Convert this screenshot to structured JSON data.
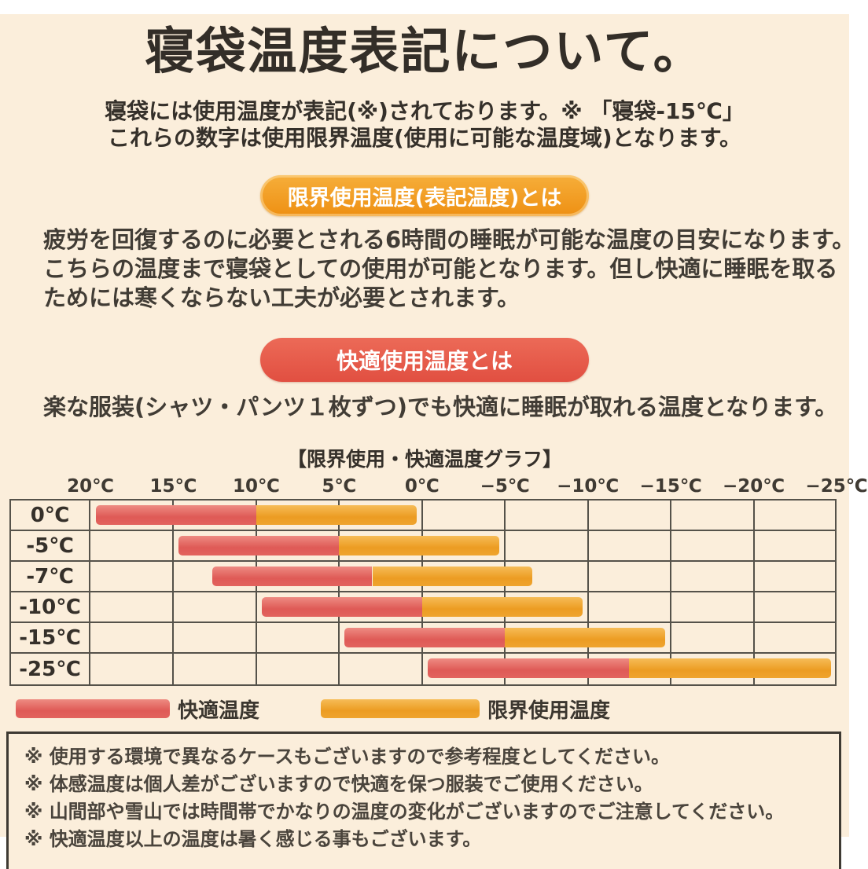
{
  "header": {
    "title": "寝袋温度表記について。",
    "subtitle_line1": "寝袋には使用温度が表記(※)されております。※ 「寝袋-15℃」",
    "subtitle_line2": "これらの数字は使用限界温度(使用に可能な温度域)となります。"
  },
  "sections": {
    "limit": {
      "badge": "限界使用温度(表記温度)とは",
      "lines": [
        "疲労を回復するのに必要とされる6時間の睡眠が可能な温度の目安になります。",
        "こちらの温度まで寝袋としての使用が可能となります。但し快適に睡眠を取る",
        "ためには寒くならない工夫が必要とされます。"
      ]
    },
    "comfort": {
      "badge": "快適使用温度とは",
      "line": "楽な服装(シャツ・パンツ１枚ずつ)でも快適に睡眠が取れる温度となります。"
    }
  },
  "chart_data": {
    "type": "bar",
    "title": "【限界使用・快適温度グラフ】",
    "x_unit": "℃",
    "x_range": [
      20,
      -25
    ],
    "x_ticks": [
      20,
      15,
      10,
      5,
      0,
      -5,
      -10,
      -15,
      -20,
      -25
    ],
    "tick_labels": [
      "20℃",
      "15℃",
      "10℃",
      "5℃",
      "0℃",
      "−5℃",
      "−10℃",
      "−15℃",
      "−20℃",
      "−25℃"
    ],
    "grid": true,
    "rows": [
      {
        "label": "0℃",
        "comfort_from": 20,
        "comfort_to": 10,
        "limit_to": 0
      },
      {
        "label": "-5℃",
        "comfort_from": 15,
        "comfort_to": 5,
        "limit_to": -5
      },
      {
        "label": "-7℃",
        "comfort_from": 13,
        "comfort_to": 3,
        "limit_to": -7
      },
      {
        "label": "-10℃",
        "comfort_from": 10,
        "comfort_to": 0,
        "limit_to": -10
      },
      {
        "label": "-15℃",
        "comfort_from": 5,
        "comfort_to": -5,
        "limit_to": -15
      },
      {
        "label": "-25℃",
        "comfort_from": 0,
        "comfort_to": -12.5,
        "limit_to": -25
      }
    ],
    "legend": [
      {
        "label": "快適温度",
        "color": "#e2625e"
      },
      {
        "label": "限界使用温度",
        "color": "#efa42f"
      }
    ],
    "colors": {
      "comfort": "#e2625e",
      "limit": "#efa42f"
    }
  },
  "footer": {
    "notes": [
      "※ 使用する環境で異なるケースもございますので参考程度としてください。",
      "※ 体感温度は個人差がございますので快適を保つ服装でご使用ください。",
      "※ 山間部や雪山では時間帯でかなりの温度の変化がございますのでご注意してください。",
      "※ 快適温度以上の温度は暑く感じる事もございます。"
    ]
  }
}
